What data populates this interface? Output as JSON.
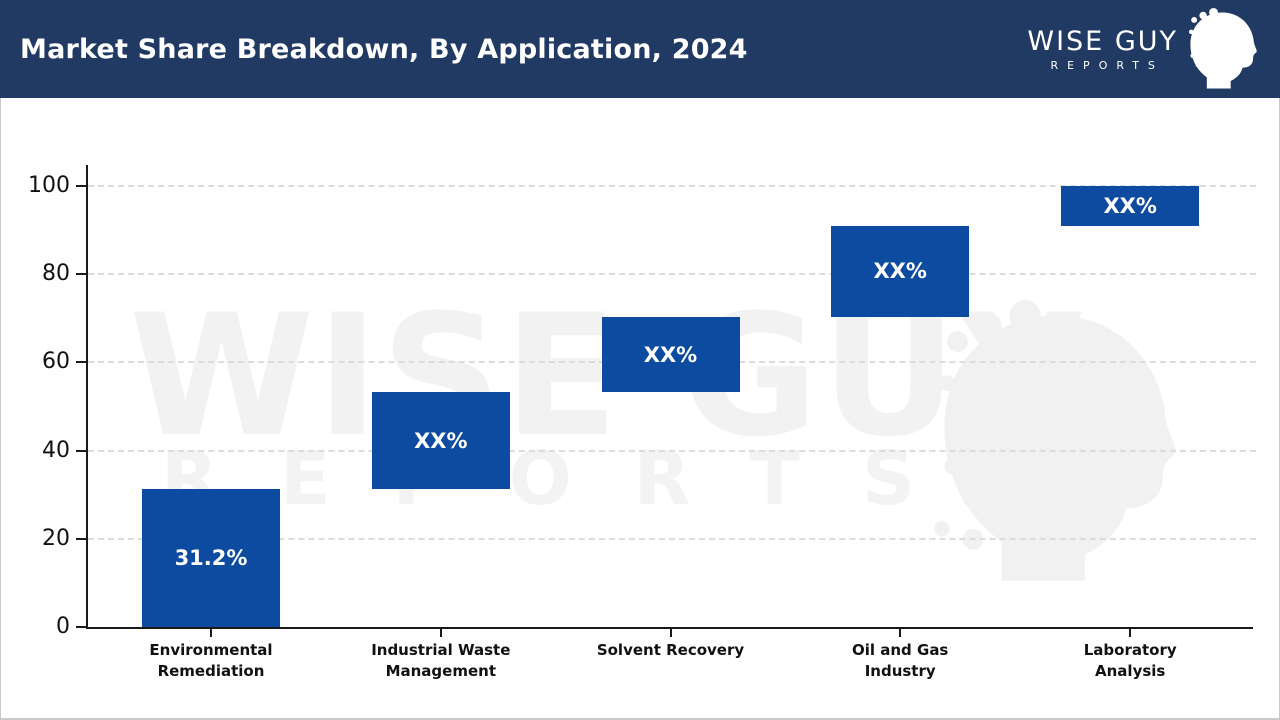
{
  "header": {
    "title": "Market Share Breakdown, By Application, 2024",
    "background": "#213a64",
    "logo": {
      "line1": "WISE GUY",
      "line2": "REPORTS"
    }
  },
  "watermark": {
    "line1": "WISE GUY",
    "line2": "REPORTS"
  },
  "chart_data": {
    "type": "bar",
    "subtype": "waterfall",
    "title": "Market Share Breakdown, By Application, 2024",
    "categories": [
      "Environmental\nRemediation",
      "Industrial Waste\nManagement",
      "Solvent Recovery",
      "Oil and Gas\nIndustry",
      "Laboratory\nAnalysis"
    ],
    "segments": [
      {
        "label": "31.2%",
        "start": 0,
        "end": 31.2
      },
      {
        "label": "XX%",
        "start": 31.2,
        "end": 53.2
      },
      {
        "label": "XX%",
        "start": 53.2,
        "end": 70.3
      },
      {
        "label": "XX%",
        "start": 70.3,
        "end": 91.0
      },
      {
        "label": "XX%",
        "start": 91.0,
        "end": 100
      }
    ],
    "values": [
      31.2,
      22.0,
      17.1,
      20.7,
      9.0
    ],
    "yticks": [
      0,
      20,
      40,
      60,
      80,
      100
    ],
    "ylim": [
      0,
      100
    ],
    "xlabel": "",
    "ylabel": "",
    "grid": "horizontal-dashed",
    "legend": "none",
    "bar_color": "#0d4ba0",
    "bar_label_color": "#ffffff",
    "grid_color": "#dcdcdc",
    "axis_color": "#1a1a1a"
  }
}
